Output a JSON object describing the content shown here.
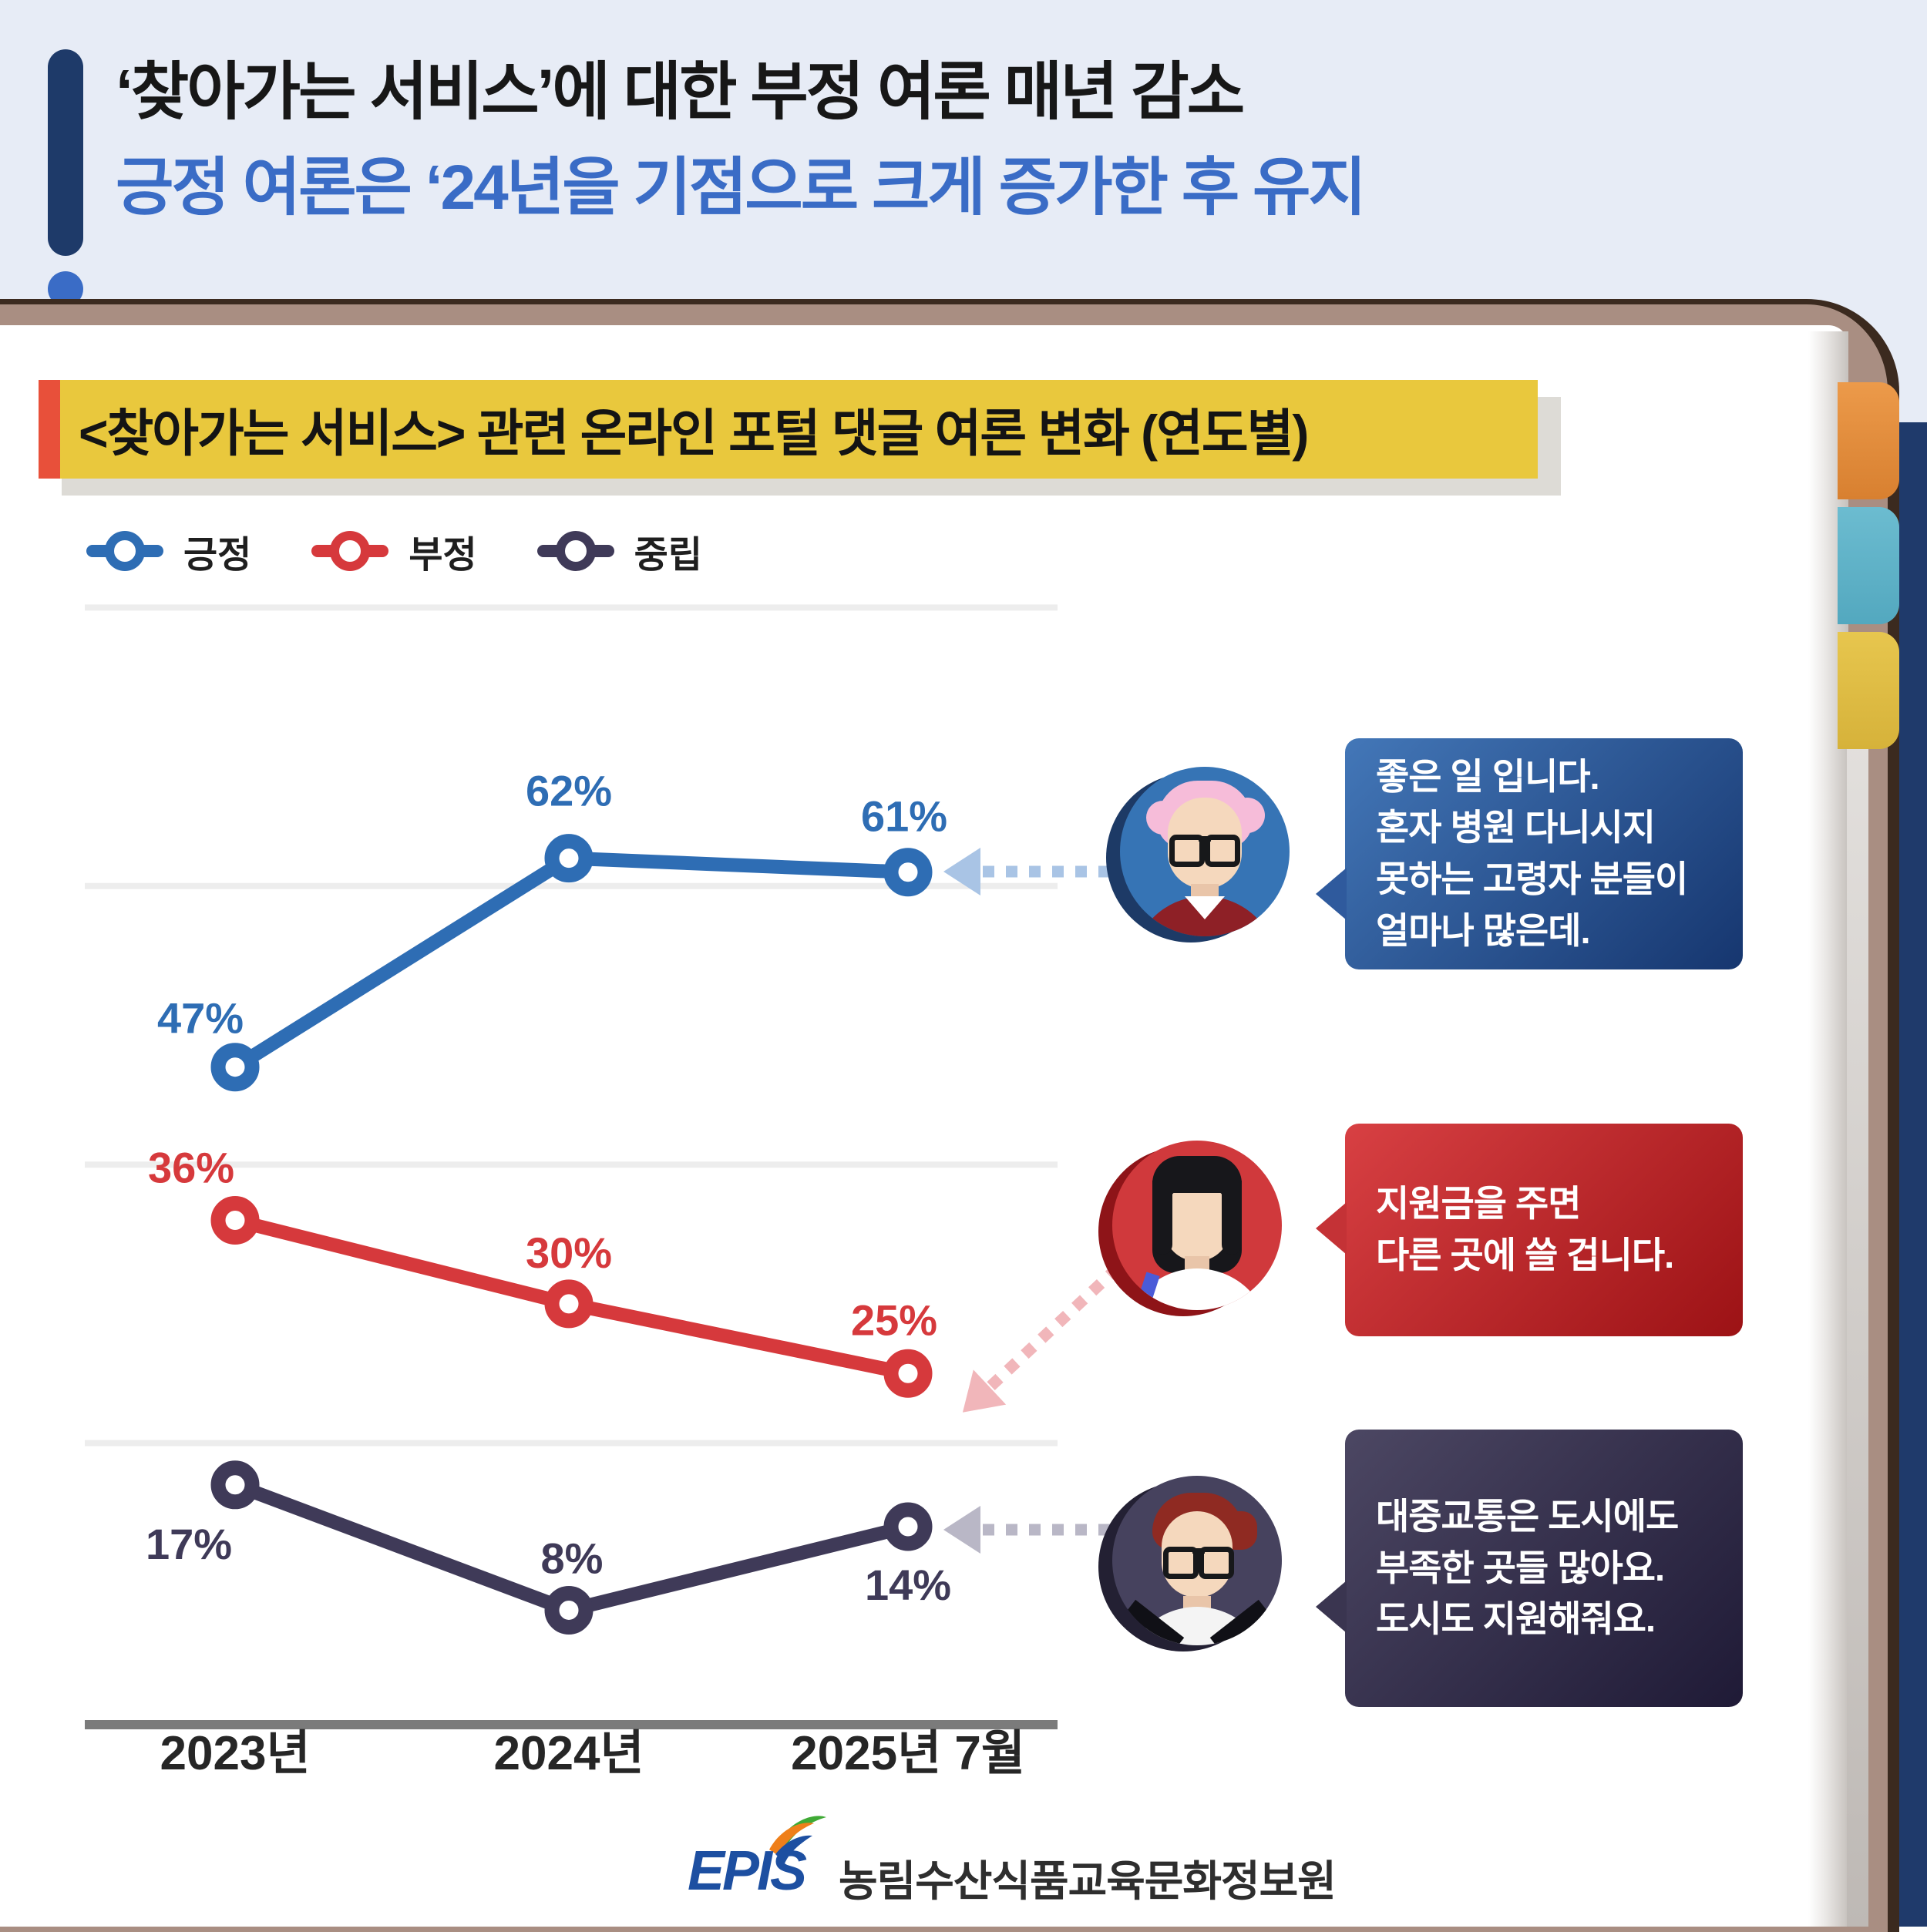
{
  "header": {
    "line1": "‘찾아가는 서비스’에 대한 부정 여론 매년 감소",
    "line2": "긍정 여론은 ‘24년을 기점으로 크게 증가한 후 유지"
  },
  "section_title": "<찾아가는 서비스> 관련 온라인 포털 댓글 여론 변화 (연도별)",
  "legend": [
    {
      "label": "긍정",
      "color": "#2e6db4"
    },
    {
      "label": "부정",
      "color": "#d6393c"
    },
    {
      "label": "중립",
      "color": "#3f3a58"
    }
  ],
  "chart_data": {
    "type": "line",
    "categories": [
      "2023년",
      "2024년",
      "2025년 7월"
    ],
    "series": [
      {
        "name": "긍정",
        "color": "#2e6db4",
        "values": [
          47,
          62,
          61
        ]
      },
      {
        "name": "부정",
        "color": "#d6393c",
        "values": [
          36,
          30,
          25
        ]
      },
      {
        "name": "중립",
        "color": "#3f3a58",
        "values": [
          17,
          8,
          14
        ]
      }
    ],
    "unit": "%",
    "ylim": [
      0,
      100
    ],
    "gridlines": [
      20,
      40,
      60,
      80
    ],
    "grid": "horizontal-only",
    "legend_position": "top-left",
    "value_labels": true,
    "title": "<찾아가는 서비스> 관련 온라인 포털 댓글 여론 변화 (연도별)"
  },
  "callouts": [
    {
      "id": "positive",
      "bubble_text": "좋은 일 입니다.\n혼자 병원 다니시지\n못하는 고령자 분들이\n얼마나 많은데.",
      "bubble_from": "#4377b8",
      "bubble_to": "#16366f",
      "tail": "#2f5a9d",
      "avatar_bg": "#3674b5",
      "avatar_shadow": "#1d3a66"
    },
    {
      "id": "negative",
      "bubble_text": "지원금을 주면\n다른 곳에 쓸 겁니다.",
      "bubble_from": "#d84043",
      "bubble_to": "#9c1215",
      "tail": "#c43236",
      "avatar_bg": "#d0393c",
      "avatar_shadow": "#8e1418"
    },
    {
      "id": "neutral",
      "bubble_text": "대중교통은 도시에도\n부족한 곳들 많아요.\n도시도 지원해줘요.",
      "bubble_from": "#4c4763",
      "bubble_to": "#1f1a36",
      "tail": "#3a3550",
      "avatar_bg": "#46425e",
      "avatar_shadow": "#232033"
    }
  ],
  "footer": {
    "logo": "EPIS",
    "org": "농림수산식품교육문화정보원"
  },
  "colors": {
    "header_bg": "#e7ecf6",
    "accent_blue": "#3a6cc6",
    "notebook_brown": "#a98e82",
    "notebook_border": "#3b2a1f",
    "spine_navy": "#1f3a6b",
    "tab_orange": "#e08a3c",
    "tab_teal": "#5fb4ca",
    "tab_yellow": "#e0bd45",
    "titlebar_yellow": "#e9c83d",
    "titlebar_accent": "#e8503a",
    "gridline": "#ededed",
    "axis": "#7b7b7b",
    "tick_label": "#262626",
    "arrow_positive": "#a9c4e5",
    "arrow_negative": "#f1b6ba",
    "arrow_neutral": "#b9b7c6"
  }
}
